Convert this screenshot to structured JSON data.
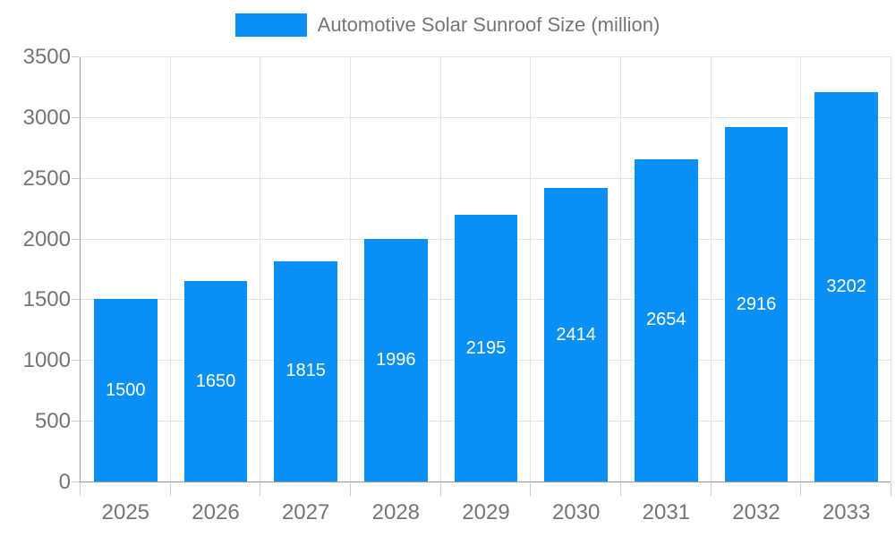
{
  "chart_data": {
    "type": "bar",
    "title": "Automotive Solar Sunroof Size (million)",
    "categories": [
      "2025",
      "2026",
      "2027",
      "2028",
      "2029",
      "2030",
      "2031",
      "2032",
      "2033"
    ],
    "values": [
      1500,
      1650,
      1815,
      1996,
      2195,
      2414,
      2654,
      2916,
      3202
    ],
    "series": [
      {
        "name": "Automotive Solar Sunroof Size (million)",
        "values": [
          1500,
          1650,
          1815,
          1996,
          2195,
          2414,
          2654,
          2916,
          3202
        ]
      }
    ],
    "xlabel": "",
    "ylabel": "",
    "ylim": [
      0,
      3500
    ],
    "y_ticks": [
      0,
      500,
      1000,
      1500,
      2000,
      2500,
      3000,
      3500
    ],
    "grid": true,
    "legend_position": "top-center",
    "bar_labels_inside": true
  },
  "colors": {
    "bar": "#0890F6",
    "grid": "#e4e4e4",
    "axis": "#9a9a9a",
    "tick": "#cccccc",
    "text": "#757575",
    "bar_label": "#ffffff",
    "background": "#ffffff"
  }
}
